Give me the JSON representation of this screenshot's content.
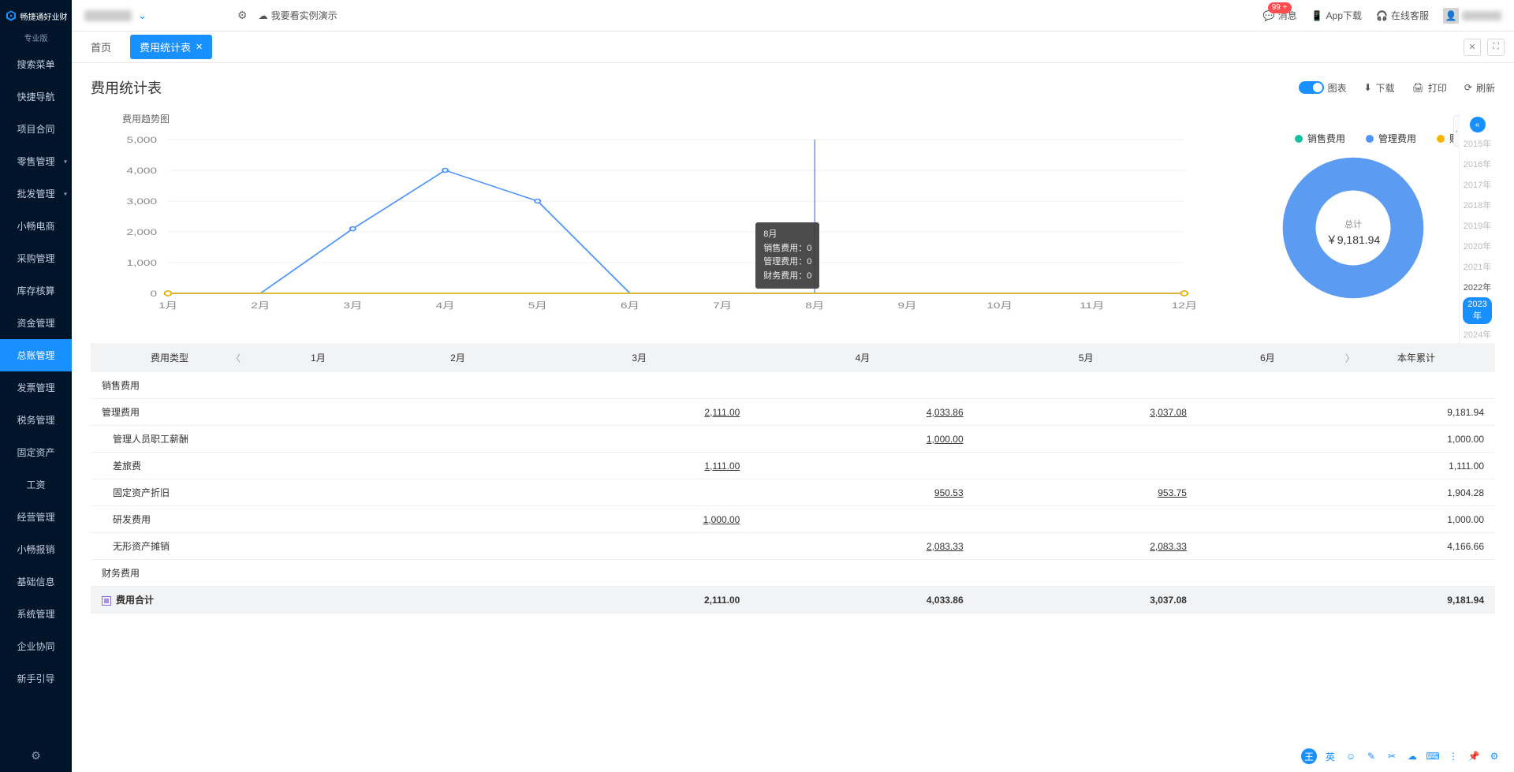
{
  "brand": {
    "name": "畅捷通好业财",
    "edition": "专业版"
  },
  "topbar": {
    "demo_link": "我要看实例演示",
    "messages": "消息",
    "badge": "99 +",
    "download": "App下载",
    "support": "在线客服"
  },
  "sidebar": {
    "items": [
      {
        "label": "搜索菜单",
        "caret": false
      },
      {
        "label": "快捷导航",
        "caret": false
      },
      {
        "label": "项目合同",
        "caret": false
      },
      {
        "label": "零售管理",
        "caret": true
      },
      {
        "label": "批发管理",
        "caret": true
      },
      {
        "label": "小畅电商",
        "caret": false
      },
      {
        "label": "采购管理",
        "caret": false
      },
      {
        "label": "库存核算",
        "caret": false
      },
      {
        "label": "资金管理",
        "caret": false
      },
      {
        "label": "总账管理",
        "caret": false,
        "active": true
      },
      {
        "label": "发票管理",
        "caret": false
      },
      {
        "label": "税务管理",
        "caret": false
      },
      {
        "label": "固定资产",
        "caret": false
      },
      {
        "label": "工资",
        "caret": false
      },
      {
        "label": "经营管理",
        "caret": false
      },
      {
        "label": "小畅报销",
        "caret": false
      },
      {
        "label": "基础信息",
        "caret": false
      },
      {
        "label": "系统管理",
        "caret": false
      },
      {
        "label": "企业协同",
        "caret": false
      },
      {
        "label": "新手引导",
        "caret": false
      }
    ]
  },
  "tabs": {
    "home": "首页",
    "current": "费用统计表"
  },
  "page": {
    "title": "费用统计表",
    "tools": {
      "chart": "图表",
      "download": "下载",
      "print": "打印",
      "refresh": "刷新"
    }
  },
  "line_chart": {
    "title": "费用趋势图",
    "y_ticks": [
      0,
      1000,
      2000,
      3000,
      4000,
      5000
    ],
    "x_labels": [
      "1月",
      "2月",
      "3月",
      "4月",
      "5月",
      "6月",
      "7月",
      "8月",
      "9月",
      "10月",
      "11月",
      "12月"
    ],
    "series": {
      "sales": {
        "name": "销售费用",
        "color": "#13c2a3",
        "values": [
          0,
          0,
          0,
          0,
          0,
          0,
          0,
          0,
          0,
          0,
          0,
          0
        ]
      },
      "admin": {
        "name": "管理费用",
        "color": "#4d94ff",
        "values": [
          0,
          0,
          2100,
          4000,
          3000,
          0,
          0,
          0,
          0,
          0,
          0,
          0
        ]
      },
      "finance": {
        "name": "财务费用",
        "color": "#f7b500",
        "values": [
          0,
          0,
          0,
          0,
          0,
          0,
          0,
          0,
          0,
          0,
          0,
          0
        ]
      }
    },
    "tooltip": {
      "month": "8月",
      "lines": [
        "销售费用：0",
        "管理费用：0",
        "财务费用：0"
      ]
    },
    "crosshair_index": 7,
    "grid_color": "#f0f0f0",
    "axis_color": "#e8e8e8"
  },
  "donut": {
    "label": "总计",
    "value": "￥9,181.94",
    "color": "#5b9bf2",
    "bg": "#ffffff"
  },
  "years": {
    "list": [
      "2015年",
      "2016年",
      "2017年",
      "2018年",
      "2019年",
      "2020年",
      "2021年",
      "2022年",
      "2023年",
      "2024年"
    ],
    "active": "2023年",
    "near": "2022年"
  },
  "table": {
    "header_first": "费用类型",
    "header_last": "本年累计",
    "months": [
      "1月",
      "2月",
      "3月",
      "4月",
      "5月",
      "6月"
    ],
    "rows": [
      {
        "label": "销售费用",
        "cells": [
          "",
          "",
          "",
          "",
          "",
          ""
        ],
        "total": "",
        "link": false
      },
      {
        "label": "管理费用",
        "cells": [
          "",
          "",
          "2,111.00",
          "4,033.86",
          "3,037.08",
          ""
        ],
        "total": "9,181.94",
        "link": true
      },
      {
        "label": "管理人员职工薪酬",
        "indent": true,
        "cells": [
          "",
          "",
          "",
          "1,000.00",
          "",
          ""
        ],
        "total": "1,000.00",
        "link": true
      },
      {
        "label": "差旅费",
        "indent": true,
        "cells": [
          "",
          "",
          "1,111.00",
          "",
          "",
          ""
        ],
        "total": "1,111.00",
        "link": true
      },
      {
        "label": "固定资产折旧",
        "indent": true,
        "cells": [
          "",
          "",
          "",
          "950.53",
          "953.75",
          ""
        ],
        "total": "1,904.28",
        "link": true
      },
      {
        "label": "研发费用",
        "indent": true,
        "cells": [
          "",
          "",
          "1,000.00",
          "",
          "",
          ""
        ],
        "total": "1,000.00",
        "link": true
      },
      {
        "label": "无形资产摊销",
        "indent": true,
        "cells": [
          "",
          "",
          "",
          "2,083.33",
          "2,083.33",
          ""
        ],
        "total": "4,166.66",
        "link": true
      },
      {
        "label": "财务费用",
        "cells": [
          "",
          "",
          "",
          "",
          "",
          ""
        ],
        "total": "",
        "link": false
      }
    ],
    "total_row": {
      "label": "费用合计",
      "cells": [
        "",
        "",
        "2,111.00",
        "4,033.86",
        "3,037.08",
        ""
      ],
      "total": "9,181.94"
    }
  },
  "ime": {
    "main": "王",
    "lang": "英"
  }
}
